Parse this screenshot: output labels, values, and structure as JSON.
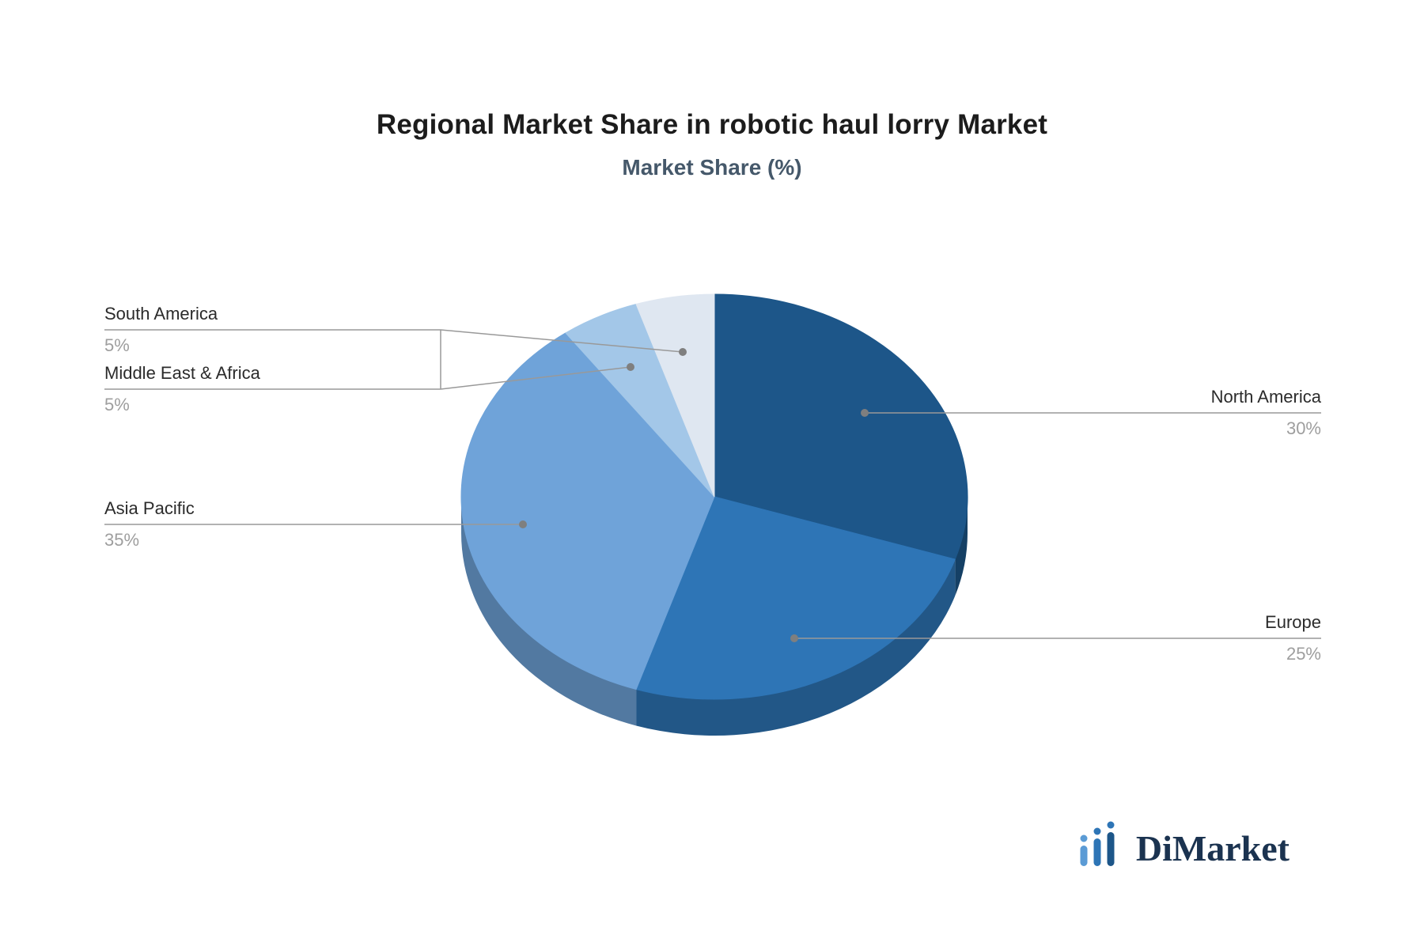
{
  "title": "Regional Market Share in robotic haul lorry Market",
  "subtitle": "Market Share (%)",
  "logo": {
    "text": "DiMarket"
  },
  "chart_data": {
    "type": "pie",
    "title": "Regional Market Share in robotic haul lorry Market",
    "subtitle": "Market Share (%)",
    "unit": "%",
    "direction": "clockwise",
    "start_angle_deg": 0,
    "effect": "3d",
    "legend": "callout-labels",
    "slices": [
      {
        "label": "North America",
        "value": 30,
        "pct_label": "30%",
        "color": "#1d5689"
      },
      {
        "label": "Europe",
        "value": 25,
        "pct_label": "25%",
        "color": "#2e75b6"
      },
      {
        "label": "Asia Pacific",
        "value": 35,
        "pct_label": "35%",
        "color": "#6fa3d9"
      },
      {
        "label": "Middle East & Africa",
        "value": 5,
        "pct_label": "5%",
        "color": "#a3c7e8"
      },
      {
        "label": "South America",
        "value": 5,
        "pct_label": "5%",
        "color": "#dfe7f1"
      }
    ]
  }
}
